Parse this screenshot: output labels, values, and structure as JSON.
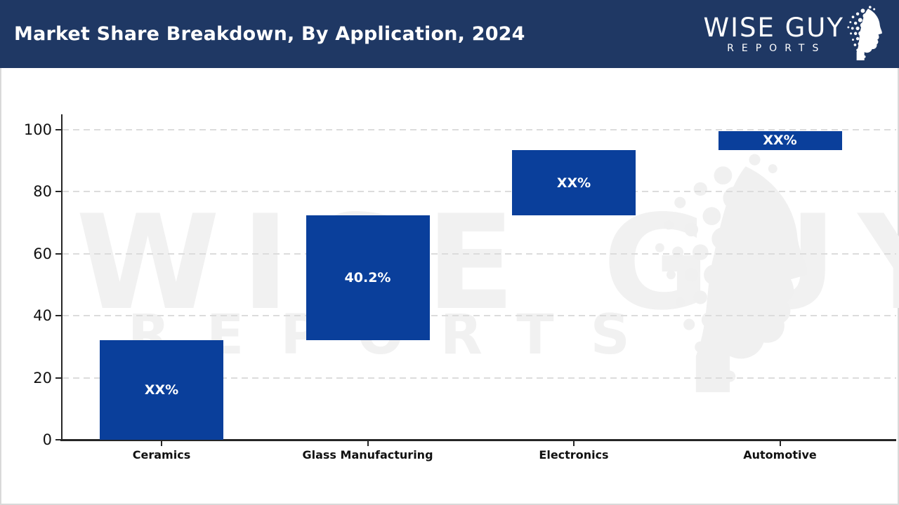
{
  "header": {
    "title": "Market Share Breakdown, By Application, 2024",
    "background_color": "#1f3864",
    "brand": {
      "name_top": "WISE GUY",
      "name_bottom": "REPORTS"
    }
  },
  "watermark": {
    "line1": "WISE GUY",
    "line2": "REPORTS"
  },
  "chart_data": {
    "type": "bar",
    "subtype": "waterfall",
    "title": "Market Share Breakdown, By Application, 2024",
    "categories": [
      "Ceramics",
      "Glass Manufacturing",
      "Electronics",
      "Automotive"
    ],
    "segments": [
      {
        "category": "Ceramics",
        "start": 0,
        "end": 32.1,
        "value": 32.1,
        "label": "XX%"
      },
      {
        "category": "Glass Manufacturing",
        "start": 32.1,
        "end": 72.3,
        "value": 40.2,
        "label": "40.2%"
      },
      {
        "category": "Electronics",
        "start": 72.3,
        "end": 93.5,
        "value": 21.2,
        "label": "XX%"
      },
      {
        "category": "Automotive",
        "start": 93.5,
        "end": 99.6,
        "value": 6.1,
        "label": "XX%"
      }
    ],
    "yticks": [
      0,
      20,
      40,
      60,
      80,
      100
    ],
    "ylim": [
      0,
      105
    ],
    "xlabel": "",
    "ylabel": "",
    "bar_color": "#0a3f9b",
    "grid": "dashed-horizontal",
    "legend": "none"
  }
}
